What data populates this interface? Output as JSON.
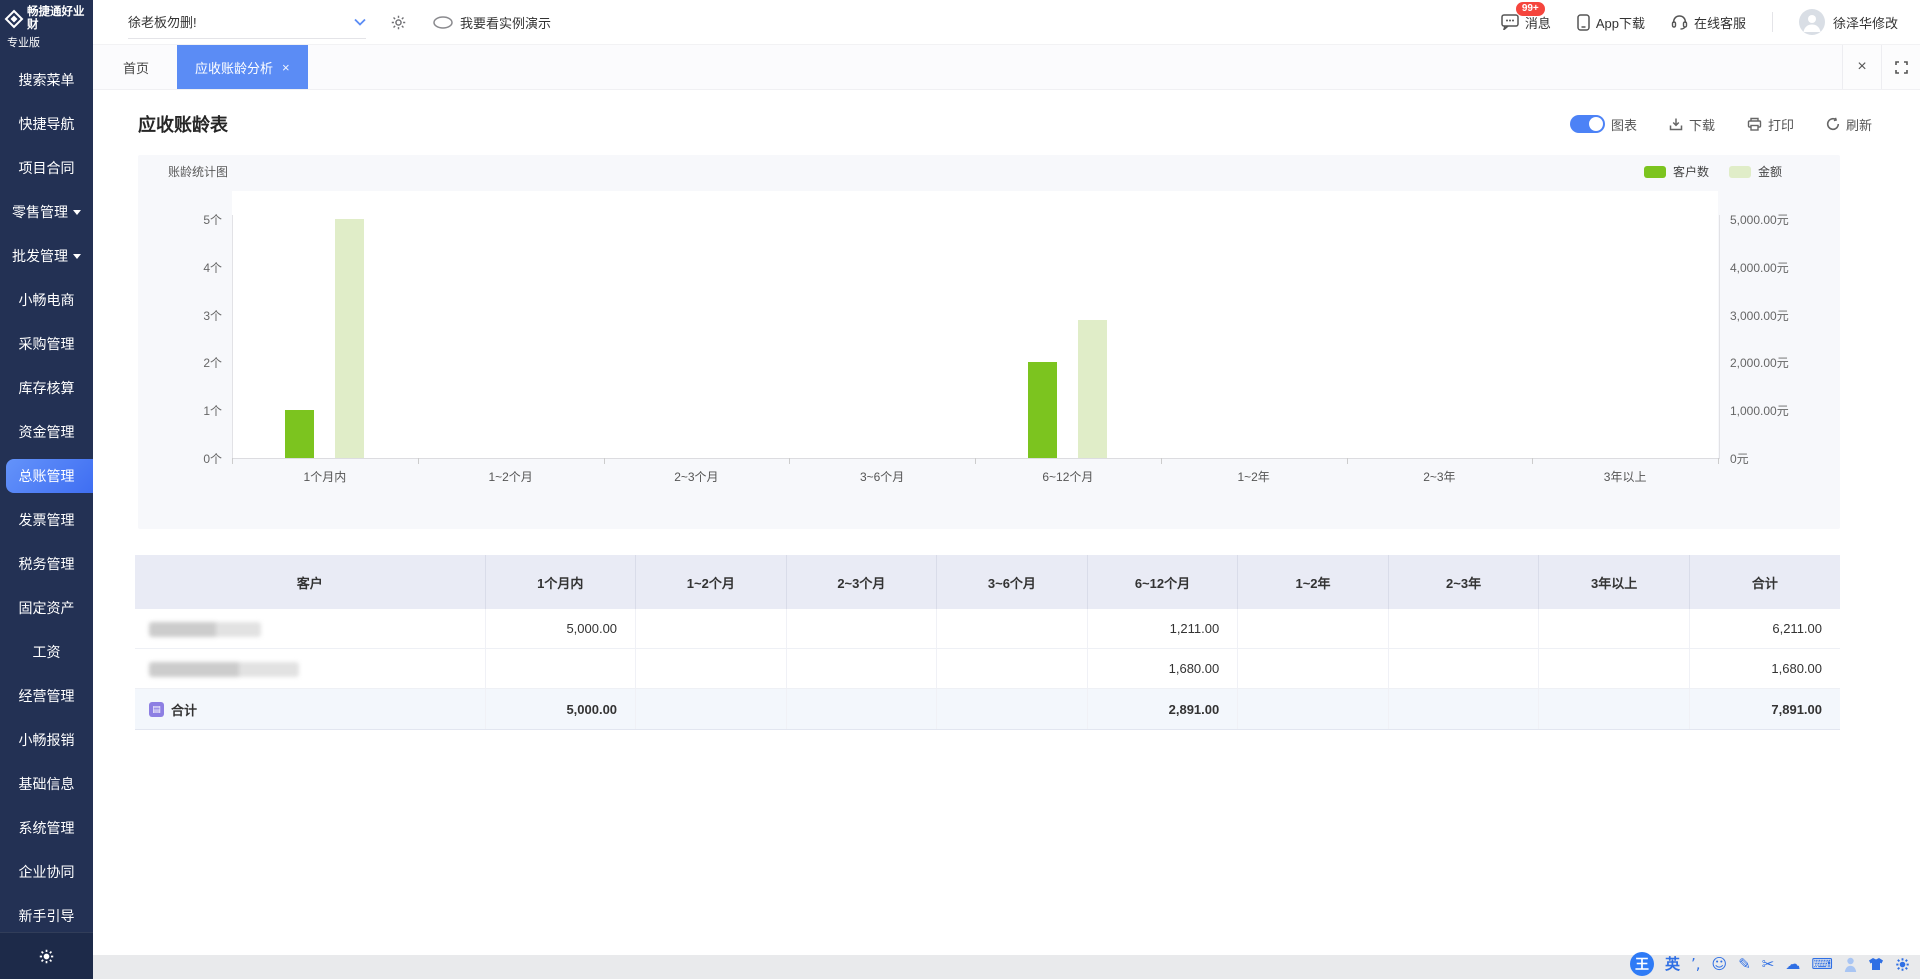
{
  "brand": {
    "name": "畅捷通好业财",
    "edition": "专业版"
  },
  "topbar": {
    "org_selector": "徐老板勿删!",
    "demo_text": "我要看实例演示",
    "messages_label": "消息",
    "messages_badge": "99+",
    "app_download_label": "App下载",
    "online_service_label": "在线客服",
    "username": "徐泽华修改"
  },
  "sidebar": {
    "items": [
      {
        "label": "搜索菜单"
      },
      {
        "label": "快捷导航"
      },
      {
        "label": "项目合同"
      },
      {
        "label": "零售管理",
        "caret": true
      },
      {
        "label": "批发管理",
        "caret": true
      },
      {
        "label": "小畅电商"
      },
      {
        "label": "采购管理"
      },
      {
        "label": "库存核算"
      },
      {
        "label": "资金管理"
      },
      {
        "label": "总账管理",
        "active": true
      },
      {
        "label": "发票管理"
      },
      {
        "label": "税务管理"
      },
      {
        "label": "固定资产"
      },
      {
        "label": "工资"
      },
      {
        "label": "经营管理"
      },
      {
        "label": "小畅报销"
      },
      {
        "label": "基础信息"
      },
      {
        "label": "系统管理"
      },
      {
        "label": "企业协同"
      },
      {
        "label": "新手引导"
      }
    ]
  },
  "tabs": {
    "home": "首页",
    "active": "应收账龄分析"
  },
  "icons": {
    "close": "×"
  },
  "page": {
    "title": "应收账龄表"
  },
  "toolbar": {
    "chart_toggle_label": "图表",
    "download_label": "下载",
    "print_label": "打印",
    "refresh_label": "刷新"
  },
  "chart_data": {
    "type": "bar",
    "title": "账龄统计图",
    "categories": [
      "1个月内",
      "1~2个月",
      "2~3个月",
      "3~6个月",
      "6~12个月",
      "1~2年",
      "2~3年",
      "3年以上"
    ],
    "series": [
      {
        "name": "客户数",
        "unit": "个",
        "axis": "left",
        "color": "#7cc41f",
        "values": [
          1,
          0,
          0,
          0,
          2,
          0,
          0,
          0
        ]
      },
      {
        "name": "金额",
        "unit": "元",
        "axis": "right",
        "color": "#e0edc8",
        "values": [
          5000,
          0,
          0,
          0,
          2891,
          0,
          0,
          0
        ]
      }
    ],
    "left_axis": {
      "min": 0,
      "max": 5,
      "ticks": [
        "0个",
        "1个",
        "2个",
        "3个",
        "4个",
        "5个"
      ]
    },
    "right_axis": {
      "min": 0,
      "max": 5000,
      "ticks": [
        "0元",
        "1,000.00元",
        "2,000.00元",
        "3,000.00元",
        "4,000.00元",
        "5,000.00元"
      ]
    },
    "legend_position": "top-right",
    "grid": false
  },
  "table": {
    "headers": [
      "客户",
      "1个月内",
      "1~2个月",
      "2~3个月",
      "3~6个月",
      "6~12个月",
      "1~2年",
      "2~3年",
      "3年以上",
      "合计"
    ],
    "rows": [
      {
        "customer": "",
        "redacted": true,
        "values": [
          "5,000.00",
          "",
          "",
          "",
          "1,211.00",
          "",
          "",
          "",
          "6,211.00"
        ]
      },
      {
        "customer": "",
        "redacted": true,
        "values": [
          "",
          "",
          "",
          "",
          "1,680.00",
          "",
          "",
          "",
          "1,680.00"
        ]
      }
    ],
    "total": {
      "label": "合计",
      "values": [
        "5,000.00",
        "",
        "",
        "",
        "2,891.00",
        "",
        "",
        "",
        "7,891.00"
      ]
    }
  },
  "ime": {
    "logo": "王",
    "lang": "英",
    "punct": "’,"
  },
  "colors": {
    "accent": "#4c82f6",
    "sidebar_bg": "#233154",
    "tab_active": "#5b8cf5",
    "bar_customers": "#7cc41f",
    "bar_amount": "#e0edc8",
    "badge_red": "#f5453d",
    "table_header_bg": "#e9ebf5",
    "total_row_bg": "#f3f7fc"
  }
}
